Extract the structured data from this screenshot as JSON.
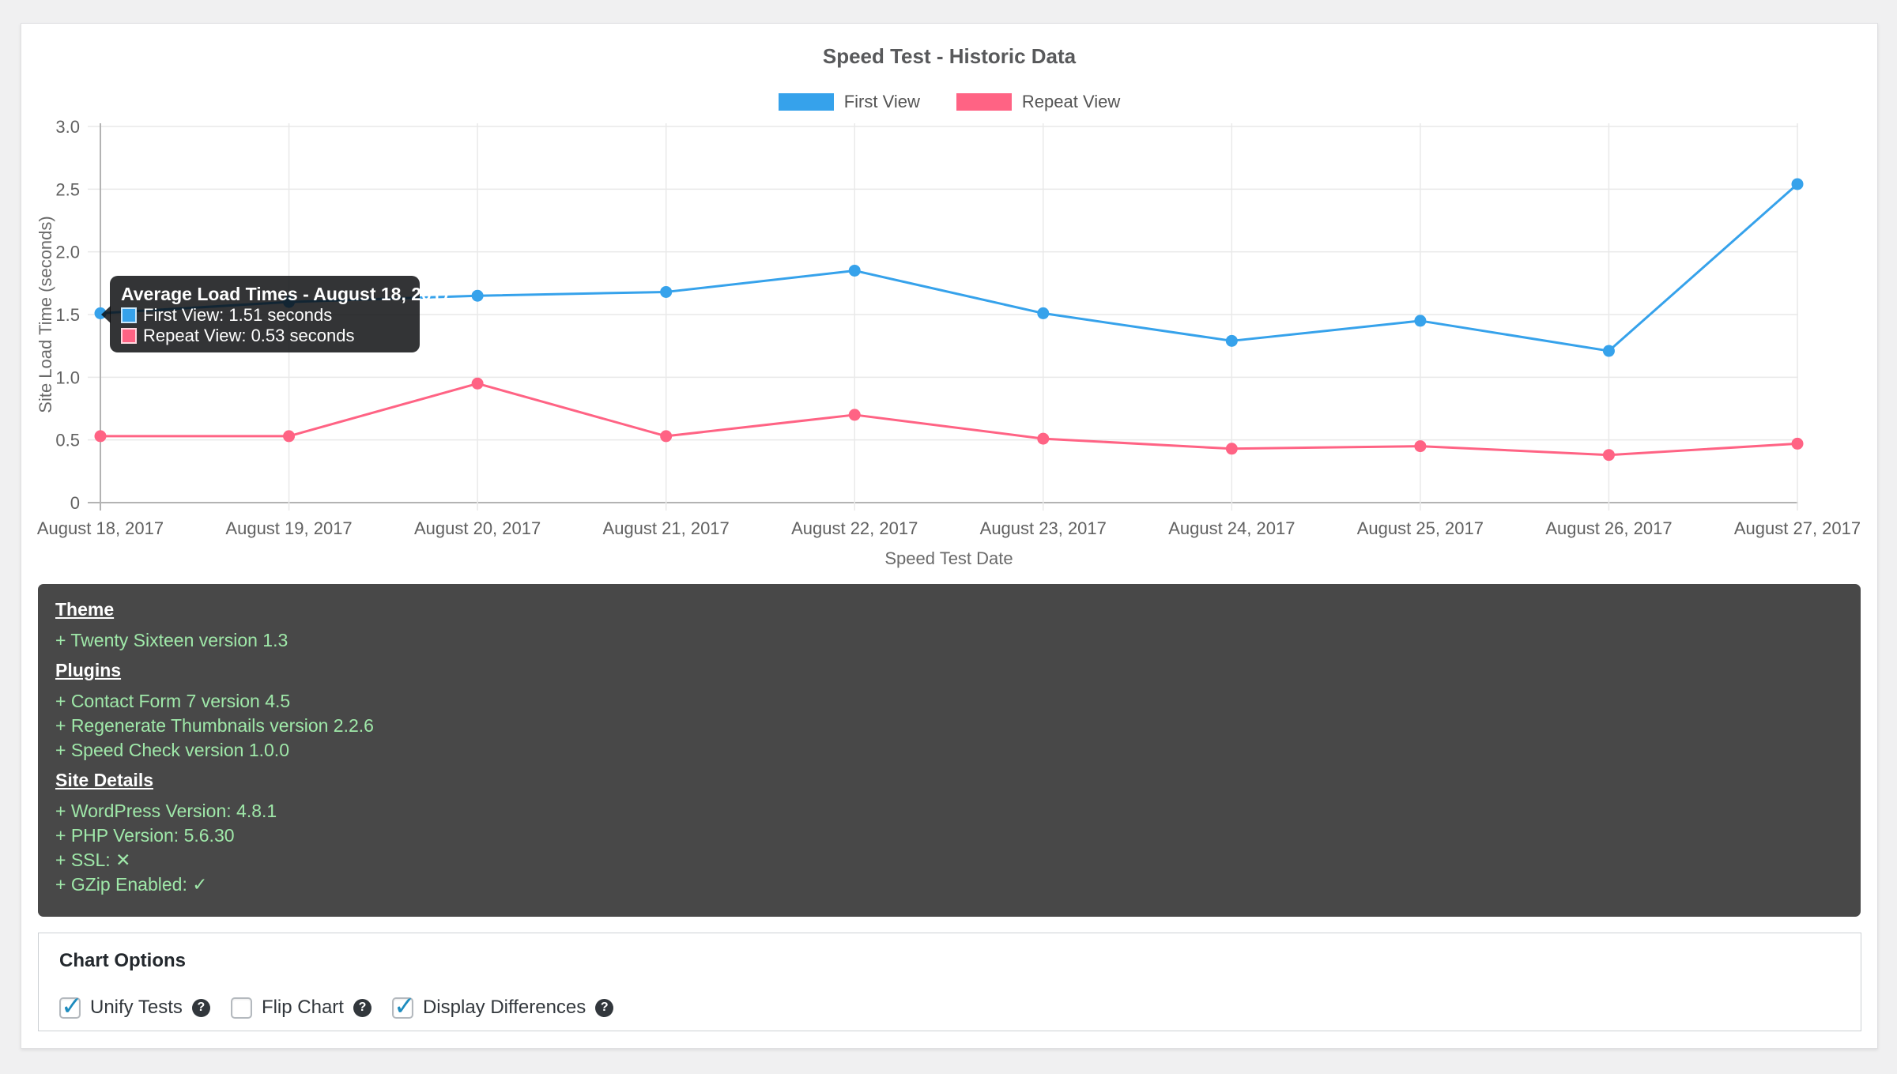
{
  "page": {
    "background": "#f0f0f1"
  },
  "chart_data": {
    "type": "line",
    "title": "Speed Test - Historic Data",
    "x": [
      "August 18, 2017",
      "August 19, 2017",
      "August 20, 2017",
      "August 21, 2017",
      "August 22, 2017",
      "August 23, 2017",
      "August 24, 2017",
      "August 25, 2017",
      "August 26, 2017",
      "August 27, 2017"
    ],
    "series": [
      {
        "name": "First View",
        "color": "#36a2eb",
        "values": [
          1.51,
          1.6,
          1.65,
          1.68,
          1.85,
          1.51,
          1.29,
          1.45,
          1.21,
          2.54
        ]
      },
      {
        "name": "Repeat View",
        "color": "#ff6384",
        "values": [
          0.53,
          0.53,
          0.95,
          0.53,
          0.7,
          0.51,
          0.43,
          0.45,
          0.38,
          0.47
        ]
      }
    ],
    "xlabel": "Speed Test Date",
    "ylabel": "Site Load Time (seconds)",
    "ylim": [
      0,
      3
    ],
    "yticks": [
      {
        "value": 0,
        "label": "0"
      },
      {
        "value": 0.5,
        "label": "0.5"
      },
      {
        "value": 1,
        "label": "1.0"
      },
      {
        "value": 1.5,
        "label": "1.5"
      },
      {
        "value": 2,
        "label": "2.0"
      },
      {
        "value": 2.5,
        "label": "2.5"
      },
      {
        "value": 3,
        "label": "3.0"
      }
    ],
    "grid": true,
    "legend_position": "top",
    "colors": {
      "gridline": "#e9e9e9",
      "axis": "#b3b3b3",
      "tick_text": "#616161",
      "axis_title_text": "#6a6a6a",
      "title_text": "#58595b"
    }
  },
  "tooltip": {
    "title": "Average Load Times - August 18, 2017",
    "rows": [
      {
        "label": "First View: 1.51 seconds",
        "color": "#36a2eb"
      },
      {
        "label": "Repeat View: 0.53 seconds",
        "color": "#ff6384"
      }
    ]
  },
  "info_panel": {
    "background": "#484848",
    "item_color": "#9fe8a9",
    "sections": [
      {
        "heading": "Theme",
        "items": [
          "+ Twenty Sixteen version 1.3"
        ]
      },
      {
        "heading": "Plugins",
        "items": [
          "+ Contact Form 7 version 4.5",
          "+ Regenerate Thumbnails version 2.2.6",
          "+ Speed Check version 1.0.0"
        ]
      },
      {
        "heading": "Site Details",
        "items": [
          "+ WordPress Version: 4.8.1",
          "+ PHP Version: 5.6.30",
          "+ SSL:  ✕",
          "+ GZip Enabled:  ✓"
        ]
      }
    ]
  },
  "chart_options": {
    "title": "Chart Options",
    "help_glyph": "?",
    "check_glyph": "✓",
    "checkbox_accent": "#1e8cbe",
    "checkboxes": [
      {
        "label": "Unify Tests",
        "checked": true
      },
      {
        "label": "Flip Chart",
        "checked": false
      },
      {
        "label": "Display Differences",
        "checked": true
      }
    ]
  }
}
